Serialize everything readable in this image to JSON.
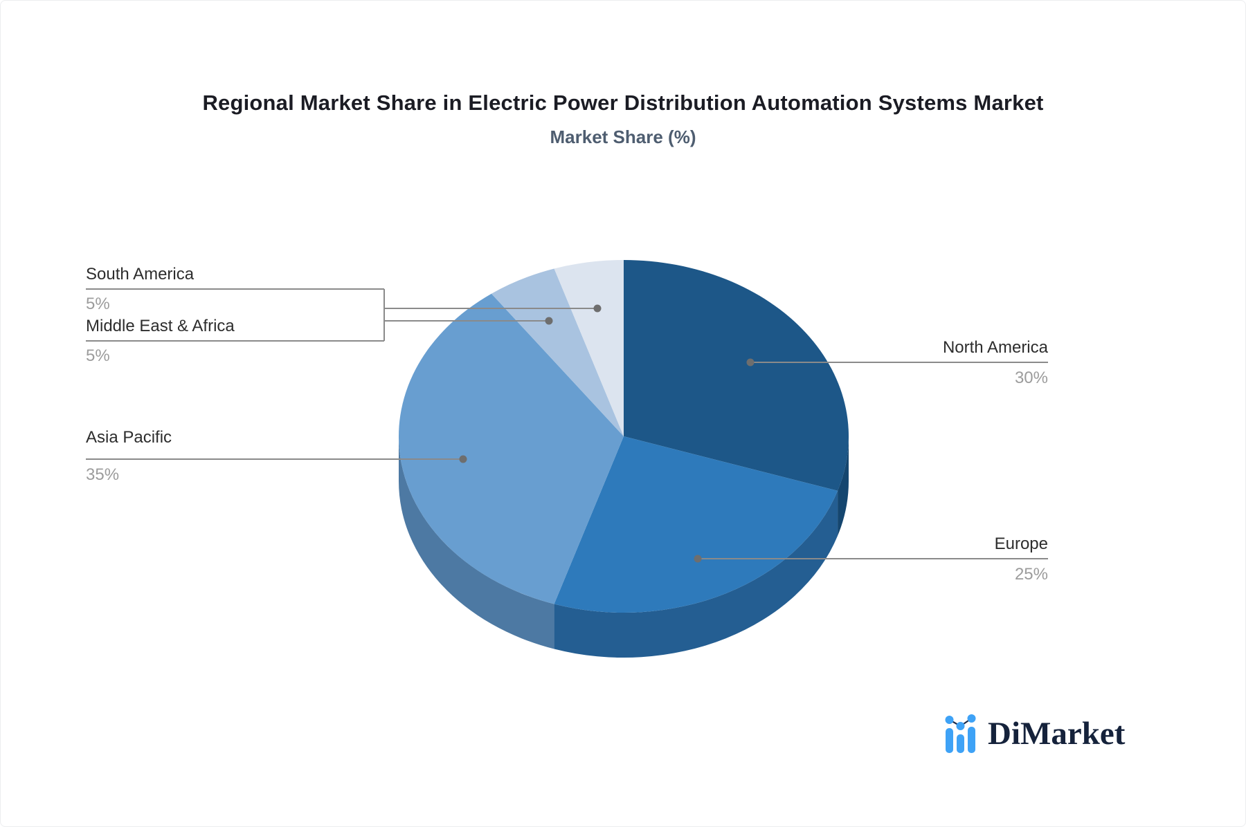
{
  "chart_data": {
    "type": "pie",
    "style": "3d",
    "title": "Regional Market Share in Electric Power Distribution Automation Systems Market",
    "subtitle": "Market Share (%)",
    "unit": "%",
    "start_angle_deg": 0,
    "direction": "clockwise",
    "categories": [
      "North America",
      "Europe",
      "Asia Pacific",
      "Middle East & Africa",
      "South America"
    ],
    "values": [
      30,
      25,
      35,
      5,
      5
    ],
    "colors": [
      "#1d5788",
      "#2e7abb",
      "#689ed0",
      "#a9c3e0",
      "#dce4ef"
    ],
    "side_colors": [
      "#15466f",
      "#245e92",
      "#4d79a3",
      "#8fa9c4",
      "#b9c4d4"
    ],
    "callouts": [
      {
        "name": "North America",
        "pct": "30%"
      },
      {
        "name": "Europe",
        "pct": "25%"
      },
      {
        "name": "Asia Pacific",
        "pct": "35%"
      },
      {
        "name": "Middle East & Africa",
        "pct": "5%"
      },
      {
        "name": "South America",
        "pct": "5%"
      }
    ],
    "legend": "none",
    "grid": false
  },
  "logo": {
    "brand": "DiMarket",
    "icon": "bar-chart-logo-icon"
  }
}
